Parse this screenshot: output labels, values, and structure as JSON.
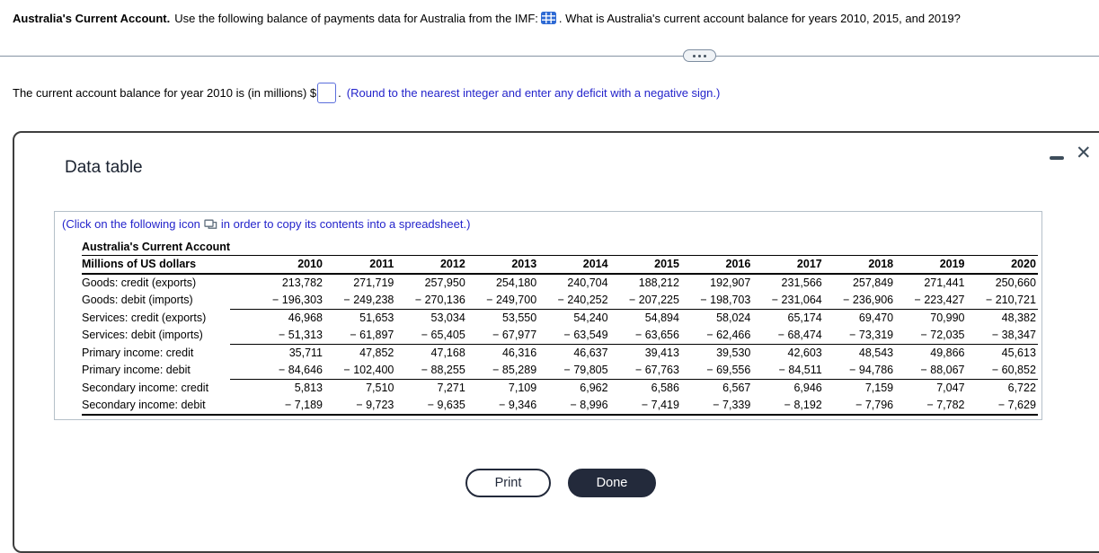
{
  "question": {
    "bold_intro": "Australia's Current Account.",
    "text_before_icon": "Use the following balance of payments data for Australia from the IMF:",
    "text_after_icon": ". What is Australia's current account balance for years 2010, 2015, and 2019?"
  },
  "answer": {
    "text_before_input": "The current account balance for year 2010 is (in millions) $",
    "input_value": "",
    "after_input": ".",
    "hint": "(Round to the nearest integer and enter any deficit with a negative sign.)"
  },
  "dialog": {
    "title": "Data table",
    "copy_instruction_before": "(Click on the following icon",
    "copy_instruction_after": "in order to copy its contents into a spreadsheet.)",
    "print_label": "Print",
    "done_label": "Done"
  },
  "icons": {
    "imf_table_icon": "spreadsheet-grid",
    "copy_icon": "copy-to-spreadsheet",
    "minimize_glyph": "−",
    "close_glyph": "✕",
    "ellipsis_glyph": "⋯"
  },
  "colors": {
    "link_blue": "#2424cb",
    "icon_blue": "#2e6ad4",
    "button_navy": "#232a3b"
  },
  "table": {
    "title": "Australia's Current Account",
    "unit_label": "Millions of US dollars",
    "years": [
      "2010",
      "2011",
      "2012",
      "2013",
      "2014",
      "2015",
      "2016",
      "2017",
      "2018",
      "2019",
      "2020"
    ],
    "rows": [
      {
        "label": "Goods: credit (exports)",
        "values": [
          "213,782",
          "271,719",
          "257,950",
          "254,180",
          "240,704",
          "188,212",
          "192,907",
          "231,566",
          "257,849",
          "271,441",
          "250,660"
        ]
      },
      {
        "label": "Goods: debit (imports)",
        "values": [
          "− 196,303",
          "− 249,238",
          "− 270,136",
          "− 249,700",
          "− 240,252",
          "− 207,225",
          "− 198,703",
          "− 231,064",
          "− 236,906",
          "− 223,427",
          "− 210,721"
        ]
      },
      {
        "label": "Services: credit (exports)",
        "values": [
          "46,968",
          "51,653",
          "53,034",
          "53,550",
          "54,240",
          "54,894",
          "58,024",
          "65,174",
          "69,470",
          "70,990",
          "48,382"
        ]
      },
      {
        "label": "Services: debit (imports)",
        "values": [
          "− 51,313",
          "− 61,897",
          "− 65,405",
          "− 67,977",
          "− 63,549",
          "− 63,656",
          "− 62,466",
          "− 68,474",
          "− 73,319",
          "− 72,035",
          "− 38,347"
        ]
      },
      {
        "label": "Primary income: credit",
        "values": [
          "35,711",
          "47,852",
          "47,168",
          "46,316",
          "46,637",
          "39,413",
          "39,530",
          "42,603",
          "48,543",
          "49,866",
          "45,613"
        ]
      },
      {
        "label": "Primary income: debit",
        "values": [
          "− 84,646",
          "− 102,400",
          "− 88,255",
          "− 85,289",
          "− 79,805",
          "− 67,763",
          "− 69,556",
          "− 84,511",
          "− 94,786",
          "− 88,067",
          "− 60,852"
        ]
      },
      {
        "label": "Secondary income: credit",
        "values": [
          "5,813",
          "7,510",
          "7,271",
          "7,109",
          "6,962",
          "6,586",
          "6,567",
          "6,946",
          "7,159",
          "7,047",
          "6,722"
        ]
      },
      {
        "label": "Secondary income: debit",
        "values": [
          "− 7,189",
          "− 9,723",
          "− 9,635",
          "− 9,346",
          "− 8,996",
          "− 7,419",
          "− 7,339",
          "− 8,192",
          "− 7,796",
          "− 7,782",
          "− 7,629"
        ]
      }
    ]
  }
}
